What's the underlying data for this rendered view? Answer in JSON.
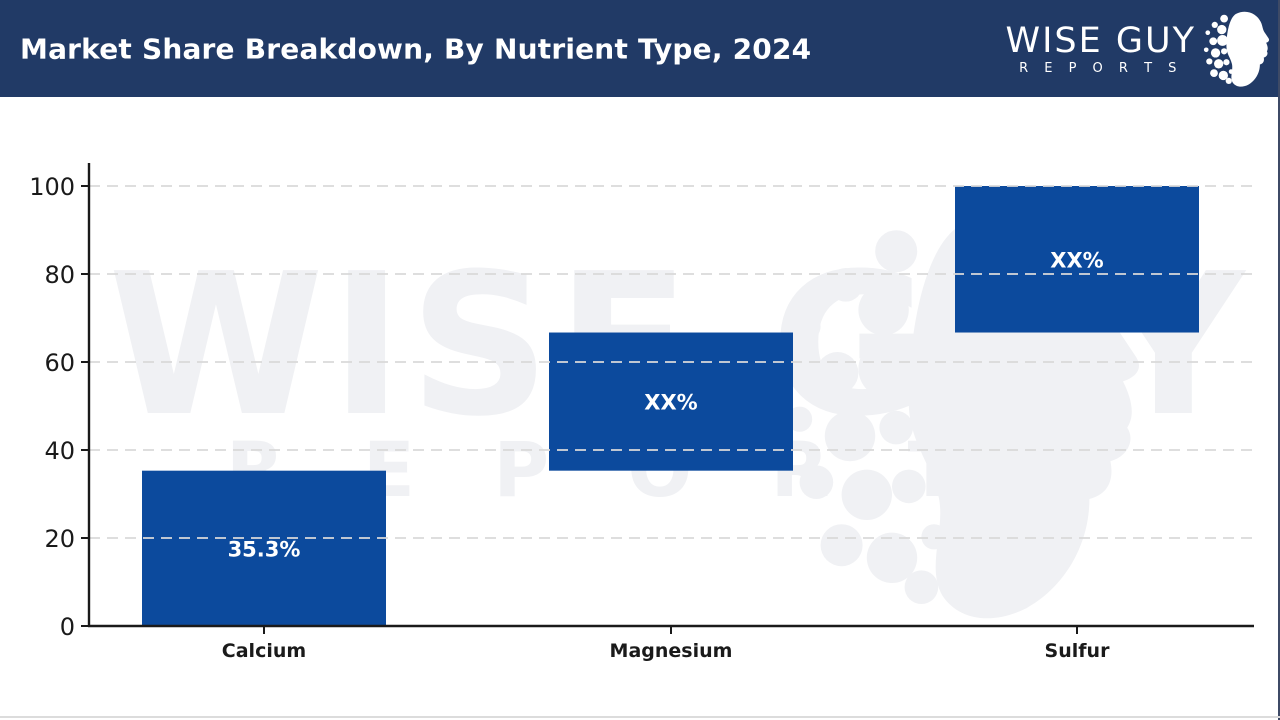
{
  "header": {
    "title": "Market Share Breakdown, By Nutrient Type, 2024",
    "logo": {
      "line1": "WISE GUY",
      "line2": "R E P O R T S"
    }
  },
  "watermark": {
    "line1": "WISE GUY",
    "line2": "R E P O R T S"
  },
  "chart_data": {
    "type": "bar",
    "subtype": "waterfall",
    "title": "Market Share Breakdown, By Nutrient Type, 2024",
    "categories": [
      "Calcium",
      "Magnesium",
      "Sulfur"
    ],
    "series": [
      {
        "name": "Market share (%)",
        "segments": [
          {
            "start": 0,
            "end": 35.3,
            "label": "35.3%"
          },
          {
            "start": 35.3,
            "end": 66.7,
            "label": "XX%"
          },
          {
            "start": 66.7,
            "end": 100,
            "label": "XX%"
          }
        ]
      }
    ],
    "ylim": [
      0,
      100
    ],
    "yticks": [
      0,
      20,
      40,
      60,
      80,
      100
    ],
    "grid": "horizontal-dashed",
    "legend": "none",
    "xlabel": "",
    "ylabel": ""
  },
  "colors": {
    "header_bg": "#213A66",
    "title_text": "#FFFFFF",
    "bar_fill": "#0C4A9D",
    "bar_label": "#FFFFFF",
    "axis": "#1A1A1A",
    "gridline": "#D9D9D9",
    "watermark": "#F0F1F4"
  }
}
